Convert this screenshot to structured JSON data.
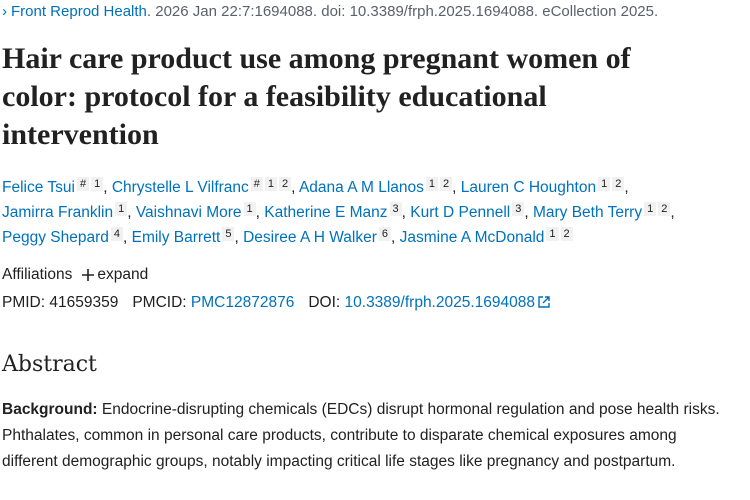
{
  "citation": {
    "journal": "Front Reprod Health",
    "details": ". 2026 Jan 22:7:1694088. doi: 10.3389/frph.2025.1694088. eCollection 2025."
  },
  "title": "Hair care product use among pregnant women of color: protocol for a feasibility educational intervention",
  "author_separator": ",",
  "authors": [
    {
      "name": "Felice Tsui",
      "sups": [
        "#",
        "1"
      ]
    },
    {
      "name": "Chrystelle L Vilfranc",
      "sups": [
        "#",
        "1",
        "2"
      ]
    },
    {
      "name": "Adana A M Llanos",
      "sups": [
        "1",
        "2"
      ]
    },
    {
      "name": "Lauren C Houghton",
      "sups": [
        "1",
        "2"
      ]
    },
    {
      "name": "Jamirra Franklin",
      "sups": [
        "1"
      ]
    },
    {
      "name": "Vaishnavi More",
      "sups": [
        "1"
      ]
    },
    {
      "name": "Katherine E Manz",
      "sups": [
        "3"
      ]
    },
    {
      "name": "Kurt D Pennell",
      "sups": [
        "3"
      ]
    },
    {
      "name": "Mary Beth Terry",
      "sups": [
        "1",
        "2"
      ]
    },
    {
      "name": "Peggy Shepard",
      "sups": [
        "4"
      ]
    },
    {
      "name": "Emily Barrett",
      "sups": [
        "5"
      ]
    },
    {
      "name": "Desiree A H Walker",
      "sups": [
        "6"
      ]
    },
    {
      "name": "Jasmine A McDonald",
      "sups": [
        "1",
        "2"
      ]
    }
  ],
  "affiliations": {
    "label": "Affiliations",
    "toggle": "expand"
  },
  "identifiers": [
    {
      "label": "PMID:",
      "value": "41659359"
    },
    {
      "label": "PMCID:",
      "value": "PMC12872876"
    },
    {
      "label": "DOI:",
      "value": "10.3389/frph.2025.1694088"
    }
  ],
  "abstract": {
    "heading": "Abstract",
    "background_label": "Background:",
    "background_text": "Endocrine-disrupting chemicals (EDCs) disrupt hormonal regulation and pose health risks. Phthalates, common in personal care products, contribute to disparate chemical exposures among different demographic groups, notably impacting critical life stages like pregnancy and postpartum."
  }
}
